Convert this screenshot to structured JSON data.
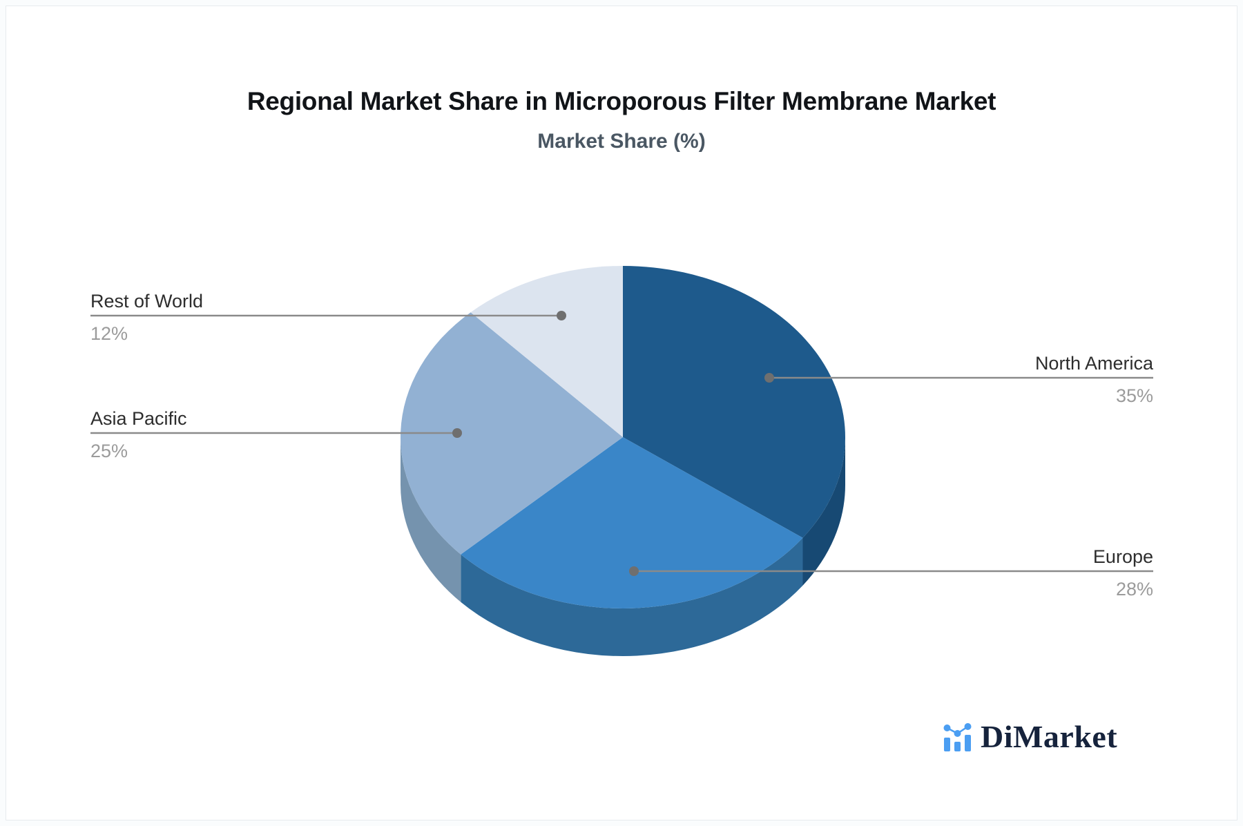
{
  "page": {
    "background_color": "#ffffff",
    "frame_border_color": "#e7ebee"
  },
  "chart_data": {
    "type": "pie",
    "style": "3d",
    "title": "Regional Market Share in Microporous Filter Membrane Market",
    "subtitle": "Market Share (%)",
    "unit": "%",
    "direction": "clockwise",
    "start_angle_deg": 0,
    "labels": [
      "North America",
      "Europe",
      "Asia Pacific",
      "Rest of World"
    ],
    "values": [
      35,
      28,
      25,
      12
    ],
    "display_values": [
      "35%",
      "28%",
      "25%",
      "12%"
    ],
    "colors": [
      "#1E5A8C",
      "#3A86C8",
      "#92B1D3",
      "#DCE4EF"
    ],
    "rim_colors": [
      "#174973",
      "#2D6998",
      "#7593AE",
      "#B9C6D6"
    ],
    "leader_line_color": "#8a8a8a",
    "leader_dot_color": "#6f6f6f",
    "label_text_color": "#2d2d2d",
    "percent_text_color": "#9b9b9b"
  },
  "logo": {
    "text": "DiMarket",
    "icon_color": "#4B9EF2",
    "text_color": "#16233c"
  }
}
